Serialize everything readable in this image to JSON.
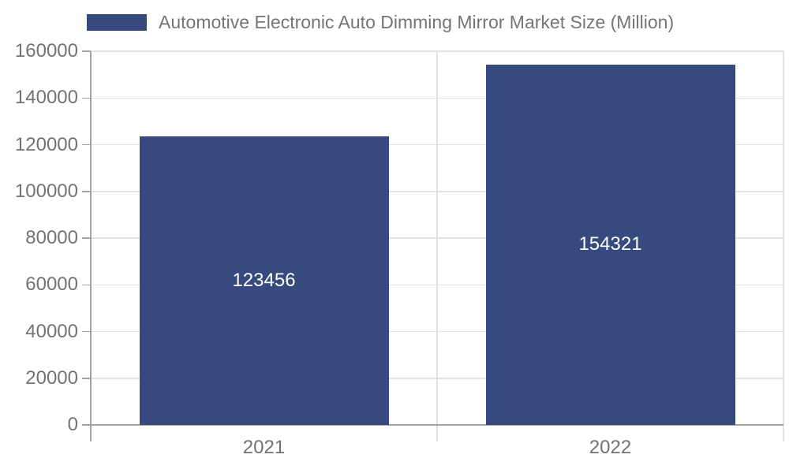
{
  "chart_data": {
    "type": "bar",
    "title": "Automotive Electronic Auto Dimming Mirror Market Size (Million)",
    "categories": [
      "2021",
      "2022"
    ],
    "values": [
      123456,
      154321
    ],
    "bar_labels": [
      "123456",
      "154321"
    ],
    "xlabel": "",
    "ylabel": "",
    "ylim": [
      0,
      160000
    ],
    "yticks": [
      0,
      20000,
      40000,
      60000,
      80000,
      100000,
      120000,
      140000,
      160000
    ],
    "grid": true,
    "legend_position": "top-left",
    "colors": {
      "bar": "#364A7F",
      "bar_label_text": "#ffffff",
      "title_text": "#757575",
      "tick_text": "#737373",
      "gridline": "#e3e3e3",
      "axis_line": "#a3a3a3",
      "background": "#ffffff"
    }
  }
}
